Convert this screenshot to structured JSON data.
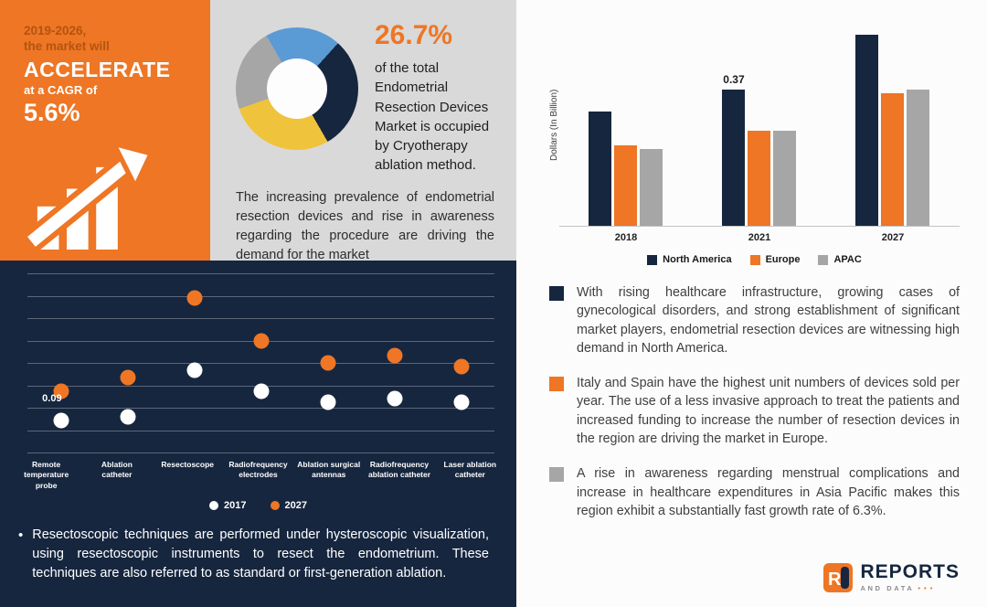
{
  "colors": {
    "orange": "#EE7624",
    "navy": "#16263F",
    "gray": "#A6A6A6",
    "panel_gray": "#D9D9D9",
    "blue": "#5B9BD5",
    "yellow": "#F0C33C",
    "white": "#FFFFFF"
  },
  "icons": {
    "growth_arrow": "bar-chart-with-rising-arrow",
    "list_bullet": "•",
    "legend_dot": "●",
    "legend_square": "■"
  },
  "accelerate_panel": {
    "period": "2019-2026,",
    "lead": "the market will",
    "headline": "ACCELERATE",
    "sub": "at a CAGR of",
    "cagr": "5.6%"
  },
  "donut_panel": {
    "stat": "26.7%",
    "stat_description": "of the total Endometrial Resection Devices Market is occupied by Cryotherapy ablation method.",
    "paragraph": "The increasing prevalence of endometrial resection devices and rise in awareness regarding the procedure are driving the demand for the market"
  },
  "dotplot_panel": {
    "note": "Resectoscopic techniques are performed under hysteroscopic visualization, using resectoscopic instruments to resect the endometrium. These techniques are also referred to as standard or first-generation ablation."
  },
  "right_bullets": [
    {
      "color": "navy",
      "text": "With rising healthcare infrastructure, growing cases of gynecological disorders, and strong establishment of significant market players, endometrial resection devices are witnessing high demand in North America."
    },
    {
      "color": "orange",
      "text": "Italy and Spain have the highest unit numbers of devices sold per year. The use of a less invasive approach to treat the patients and increased funding to increase the number of resection devices in the region are driving the market in Europe."
    },
    {
      "color": "gray",
      "text": "A rise in awareness regarding menstrual complications and increase in healthcare expenditures in Asia Pacific makes this region exhibit a substantially fast growth rate of 6.3%."
    }
  ],
  "logo": {
    "top": "REPORTS",
    "bottom": "AND DATA",
    "dots": "• • •"
  },
  "chart_data": [
    {
      "type": "pie",
      "donut": true,
      "start_angle_deg": -30,
      "highlighted_share_percent": 26.7,
      "highlighted_share_label": "Cryotherapy ablation method",
      "slices": [
        {
          "color": "blue",
          "value": 20
        },
        {
          "color": "navy",
          "value": 30
        },
        {
          "color": "yellow",
          "value": 28
        },
        {
          "color": "gray",
          "value": 22
        }
      ]
    },
    {
      "type": "scatter",
      "categories": [
        "Remote temperature probe",
        "Ablation catheter",
        "Resectoscope",
        "Radiofrequency electrodes",
        "Ablation surgical antennas",
        "Radiofrequency ablation catheter",
        "Laser ablation catheter"
      ],
      "series": [
        {
          "name": "2017",
          "color": "white",
          "values": [
            0.09,
            0.1,
            0.23,
            0.17,
            0.14,
            0.15,
            0.14
          ]
        },
        {
          "name": "2027",
          "color": "orange",
          "values": [
            0.17,
            0.21,
            0.43,
            0.31,
            0.25,
            0.27,
            0.24
          ]
        }
      ],
      "ylim": [
        0,
        0.5
      ],
      "gridlines": 9,
      "legend_position": "bottom",
      "annotation": {
        "series": 0,
        "index": 0,
        "text": "0.09"
      }
    },
    {
      "type": "bar",
      "categories": [
        "2018",
        "2021",
        "2027"
      ],
      "series": [
        {
          "name": "North America",
          "color": "navy",
          "values": [
            0.31,
            0.37,
            0.52
          ]
        },
        {
          "name": "Europe",
          "color": "orange",
          "values": [
            0.22,
            0.26,
            0.36
          ]
        },
        {
          "name": "APAC",
          "color": "gray",
          "values": [
            0.21,
            0.26,
            0.37
          ]
        }
      ],
      "ylabel": "Dollars (In Billion)",
      "ylim": [
        0,
        0.55
      ],
      "legend_position": "bottom",
      "annotation": {
        "series": 0,
        "category": "2021",
        "text": "0.37"
      }
    }
  ]
}
